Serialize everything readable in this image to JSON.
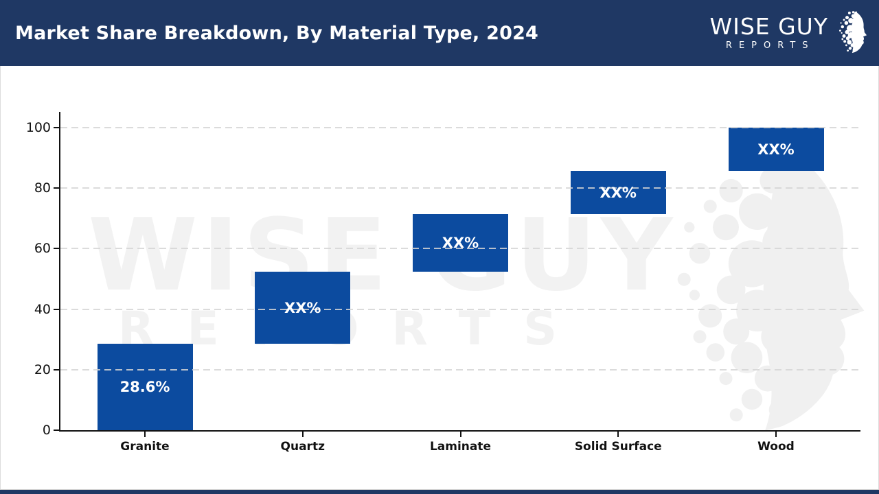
{
  "header": {
    "title": "Market Share Breakdown, By Material Type, 2024",
    "bg_color": "#1F3864",
    "logo": {
      "line1": "WISE GUY",
      "line2": "REPORTS"
    }
  },
  "watermark": {
    "line1": "WISE GUY",
    "line2": "REPORTS"
  },
  "chart_data": {
    "type": "bar",
    "subtype": "waterfall",
    "title": "Market Share Breakdown, By Material Type, 2024",
    "xlabel": "",
    "ylabel": "",
    "ylim": [
      0,
      100
    ],
    "yticks": [
      0,
      20,
      40,
      60,
      80,
      100
    ],
    "grid": "horizontal-dashed",
    "legend": "none",
    "bar_color": "#0C4B9F",
    "label_color": "#ffffff",
    "categories": [
      "Granite",
      "Quartz",
      "Laminate",
      "Solid Surface",
      "Wood"
    ],
    "values": [
      28.6,
      23.7,
      19.1,
      14.3,
      14.3
    ],
    "segments": [
      {
        "category": "Granite",
        "start": 0,
        "end": 28.6,
        "label": "28.6%"
      },
      {
        "category": "Quartz",
        "start": 28.6,
        "end": 52.3,
        "label": "XX%"
      },
      {
        "category": "Laminate",
        "start": 52.3,
        "end": 71.4,
        "label": "XX%"
      },
      {
        "category": "Solid Surface",
        "start": 71.4,
        "end": 85.7,
        "label": "XX%"
      },
      {
        "category": "Wood",
        "start": 85.7,
        "end": 100,
        "label": "XX%"
      }
    ]
  }
}
